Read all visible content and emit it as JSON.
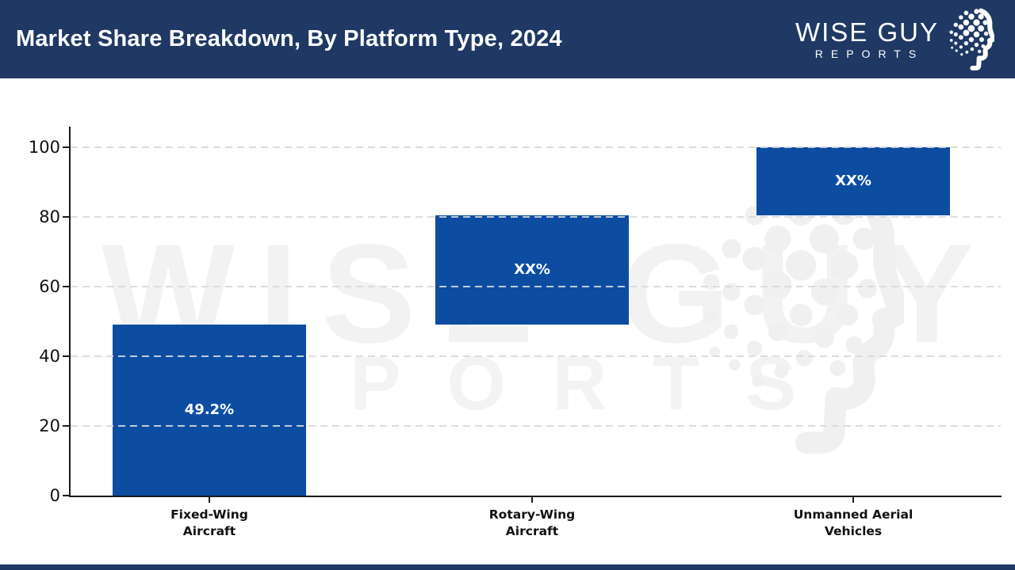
{
  "header": {
    "title": "Market Share Breakdown, By Platform Type, 2024",
    "logo": {
      "line1": "WISE GUY",
      "line2": "REPORTS"
    }
  },
  "watermark": {
    "line1": "WISE GUY",
    "line2": "REPORTS"
  },
  "colors": {
    "header_bg": "#1F3864",
    "footer_bg": "#1F3864",
    "bar": "#0C4DA2",
    "gridline": "#D9D9D9",
    "axis": "#1a1a1a",
    "value_label": "#ffffff"
  },
  "chart_data": {
    "type": "bar",
    "variant": "waterfall",
    "title": "Market Share Breakdown, By Platform Type, 2024",
    "categories": [
      [
        "Fixed-Wing",
        "Aircraft"
      ],
      [
        "Rotary-Wing",
        "Aircraft"
      ],
      [
        "Unmanned Aerial",
        "Vehicles"
      ]
    ],
    "segments": [
      {
        "category": "Fixed-Wing Aircraft",
        "start": 0,
        "end": 49.2,
        "value": 49.2,
        "label": "49.2%"
      },
      {
        "category": "Rotary-Wing Aircraft",
        "start": 49.2,
        "end": 80.5,
        "value": 31.3,
        "label": "XX%"
      },
      {
        "category": "Unmanned Aerial Vehicles",
        "start": 80.5,
        "end": 100,
        "value": 19.5,
        "label": "XX%"
      }
    ],
    "yticks": [
      0,
      20,
      40,
      60,
      80,
      100
    ],
    "ylim": [
      0,
      100
    ],
    "grid": true,
    "legend": false,
    "bar_color": "#0C4DA2"
  }
}
